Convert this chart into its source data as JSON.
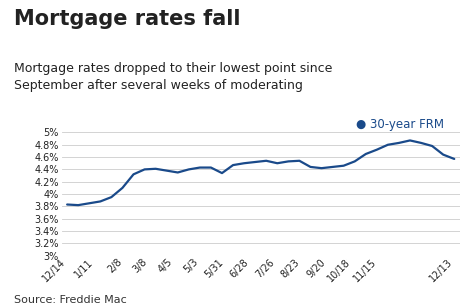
{
  "title": "Mortgage rates fall",
  "subtitle": "Mortgage rates dropped to their lowest point since\nSeptember after several weeks of moderating",
  "legend_label": "30-year FRM",
  "source": "Source: Freddie Mac",
  "x_labels": [
    "12/14",
    "1/11",
    "2/8",
    "3/8",
    "4/5",
    "5/3",
    "5/31",
    "6/28",
    "7/26",
    "8/23",
    "9/20",
    "10/18",
    "11/15",
    "12/13"
  ],
  "y_values": [
    3.83,
    3.82,
    3.85,
    3.88,
    3.95,
    4.1,
    4.32,
    4.4,
    4.41,
    4.38,
    4.35,
    4.4,
    4.43,
    4.43,
    4.34,
    4.47,
    4.5,
    4.52,
    4.54,
    4.5,
    4.53,
    4.54,
    4.44,
    4.42,
    4.44,
    4.46,
    4.53,
    4.65,
    4.72,
    4.8,
    4.83,
    4.87,
    4.83,
    4.78,
    4.64,
    4.57
  ],
  "x_indices": [
    0,
    1,
    2,
    3,
    4,
    5,
    6,
    7,
    8,
    9,
    10,
    11,
    12,
    13,
    14,
    15,
    16,
    17,
    18,
    19,
    20,
    21,
    22,
    23,
    24,
    25,
    26,
    27,
    28,
    29,
    30,
    31,
    32,
    33,
    34,
    35
  ],
  "x_tick_positions": [
    0,
    2.5,
    5.1,
    7.4,
    9.7,
    12.0,
    14.3,
    16.6,
    18.9,
    21.2,
    23.5,
    25.8,
    28.1,
    35
  ],
  "ylim": [
    3.0,
    5.0
  ],
  "yticks": [
    3.0,
    3.2,
    3.4,
    3.6,
    3.8,
    4.0,
    4.2,
    4.4,
    4.6,
    4.8,
    5.0
  ],
  "line_color": "#1a4a8a",
  "line_width": 1.6,
  "bg_color": "#ffffff",
  "grid_color": "#cccccc",
  "title_fontsize": 15,
  "subtitle_fontsize": 9,
  "tick_fontsize": 7,
  "source_fontsize": 8,
  "legend_fontsize": 8.5,
  "legend_dot_color": "#1a4a8a",
  "text_color": "#222222",
  "source_color": "#333333"
}
